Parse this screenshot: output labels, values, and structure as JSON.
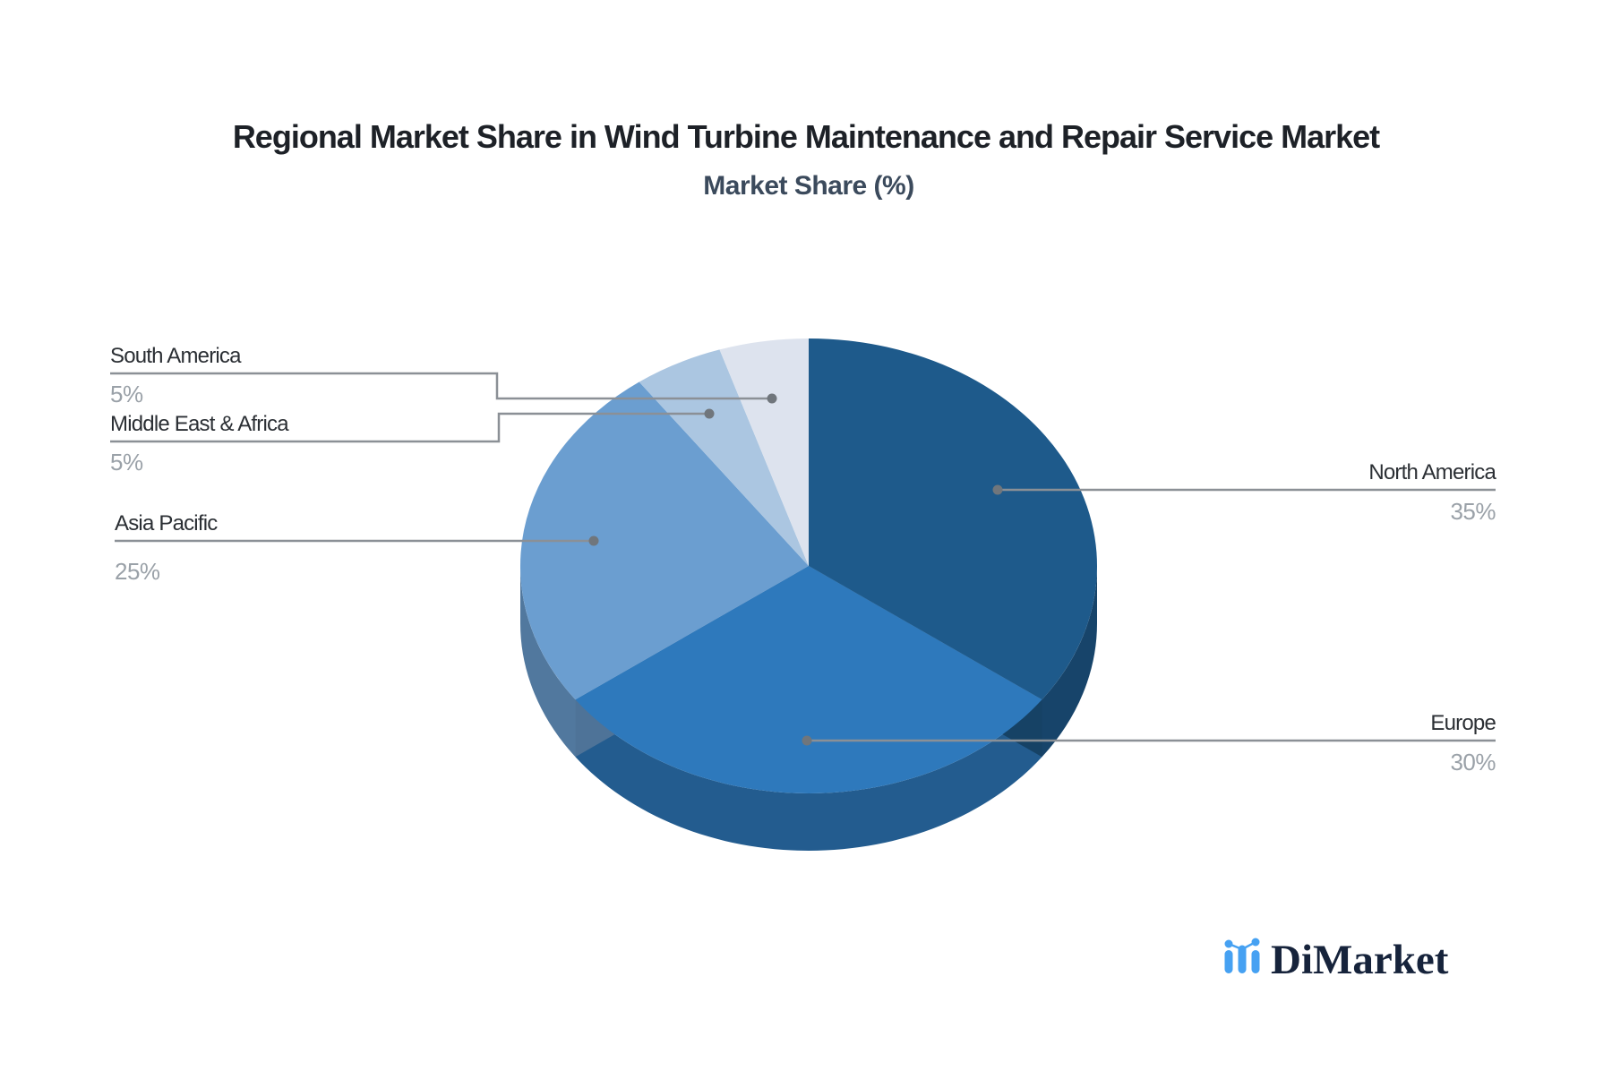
{
  "chart_data": {
    "type": "pie",
    "title": "Regional Market Share in Wind Turbine Maintenance and Repair Service Market",
    "subtitle": "Market Share (%)",
    "labels": [
      "North America",
      "Europe",
      "Asia Pacific",
      "Middle East & Africa",
      "South America"
    ],
    "values": [
      35,
      30,
      25,
      5,
      5
    ],
    "unit": "%",
    "colors": [
      "#1e5a8b",
      "#2e79bc",
      "#6b9ed0",
      "#abc6e1",
      "#dde3ee"
    ],
    "effect": "3d",
    "start_angle_deg": 0,
    "direction": "clockwise",
    "legend": "none",
    "background": "#ffffff",
    "leader_line_color": "#8b9096",
    "leader_dot_color": "#70767c",
    "label_color": "#2b2f34",
    "value_color": "#9aa1a8",
    "title_color": "#1d2127",
    "subtitle_color": "#3b4a5c"
  },
  "logo": {
    "text": "DiMarket",
    "icon": "bar-line-chart-icon",
    "icon_color": "#46a1f2",
    "text_color": "#16233b"
  }
}
